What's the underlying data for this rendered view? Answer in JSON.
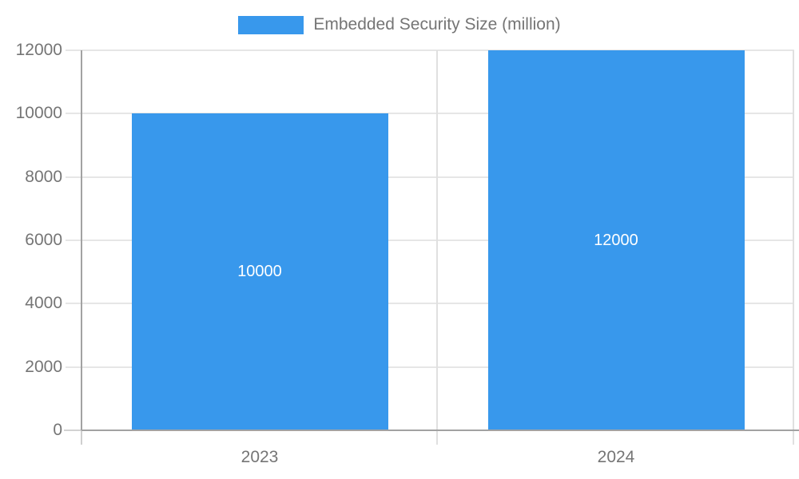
{
  "chart_data": {
    "type": "bar",
    "legend": {
      "position": "top",
      "label": "Embedded Security Size (million)"
    },
    "categories": [
      "2023",
      "2024"
    ],
    "series": [
      {
        "name": "Embedded Security Size (million)",
        "color": "#3898EC",
        "values": [
          10000,
          12000
        ],
        "data_labels": [
          "10000",
          "12000"
        ]
      }
    ],
    "x_tick_labels": [
      "2023",
      "2024"
    ],
    "y_tick_labels": [
      "0",
      "2000",
      "4000",
      "6000",
      "8000",
      "10000",
      "12000"
    ],
    "yticks": [
      0,
      2000,
      4000,
      6000,
      8000,
      10000,
      12000
    ],
    "ylim": [
      0,
      12000
    ],
    "grid": true,
    "xlabel": "",
    "ylabel": ""
  },
  "colors": {
    "bar": "#3898EC",
    "gridline": "#e6e6e6",
    "axis_line": "#a2a2a2",
    "tick_label_text": "#757575",
    "legend_text": "#757575",
    "data_label_text": "#ffffff",
    "background": "#ffffff"
  }
}
